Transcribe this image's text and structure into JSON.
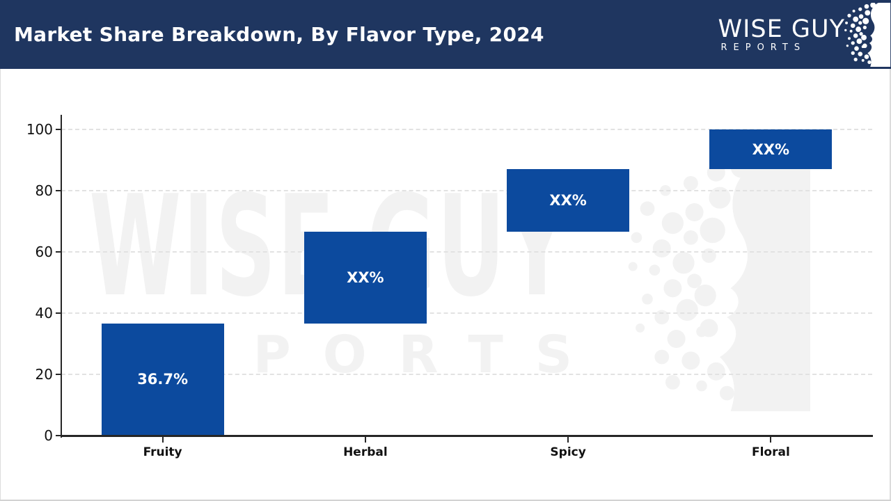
{
  "header": {
    "title": "Market Share Breakdown, By Flavor Type, 2024",
    "logo": {
      "line1": "WISE GUY",
      "line2": "REPORTS"
    }
  },
  "watermark": {
    "line1": "WISE GUY",
    "line2": "REPORTS"
  },
  "colors": {
    "header_bg": "#1f3660",
    "bar": "#0c4a9e",
    "axis": "#262626",
    "gridline": "#e2e2e2",
    "watermark": "#f2f2f2",
    "bar_label": "#ffffff",
    "tick_text": "#111111"
  },
  "chart_data": {
    "type": "bar",
    "subtype": "waterfall",
    "title": "Market Share Breakdown, By Flavor Type, 2024",
    "categories": [
      "Fruity",
      "Herbal",
      "Spicy",
      "Floral"
    ],
    "segments": [
      {
        "category": "Fruity",
        "start": 0,
        "end": 36.7,
        "label": "36.7%"
      },
      {
        "category": "Herbal",
        "start": 36.7,
        "end": 66.5,
        "label": "XX%"
      },
      {
        "category": "Spicy",
        "start": 66.5,
        "end": 87,
        "label": "XX%"
      },
      {
        "category": "Floral",
        "start": 87,
        "end": 100,
        "label": "XX%"
      }
    ],
    "xlabel": "",
    "ylabel": "",
    "ylim": [
      0,
      100
    ],
    "yticks": [
      0,
      20,
      40,
      60,
      80,
      100
    ],
    "grid": "horizontal-dashed",
    "legend": "none"
  }
}
